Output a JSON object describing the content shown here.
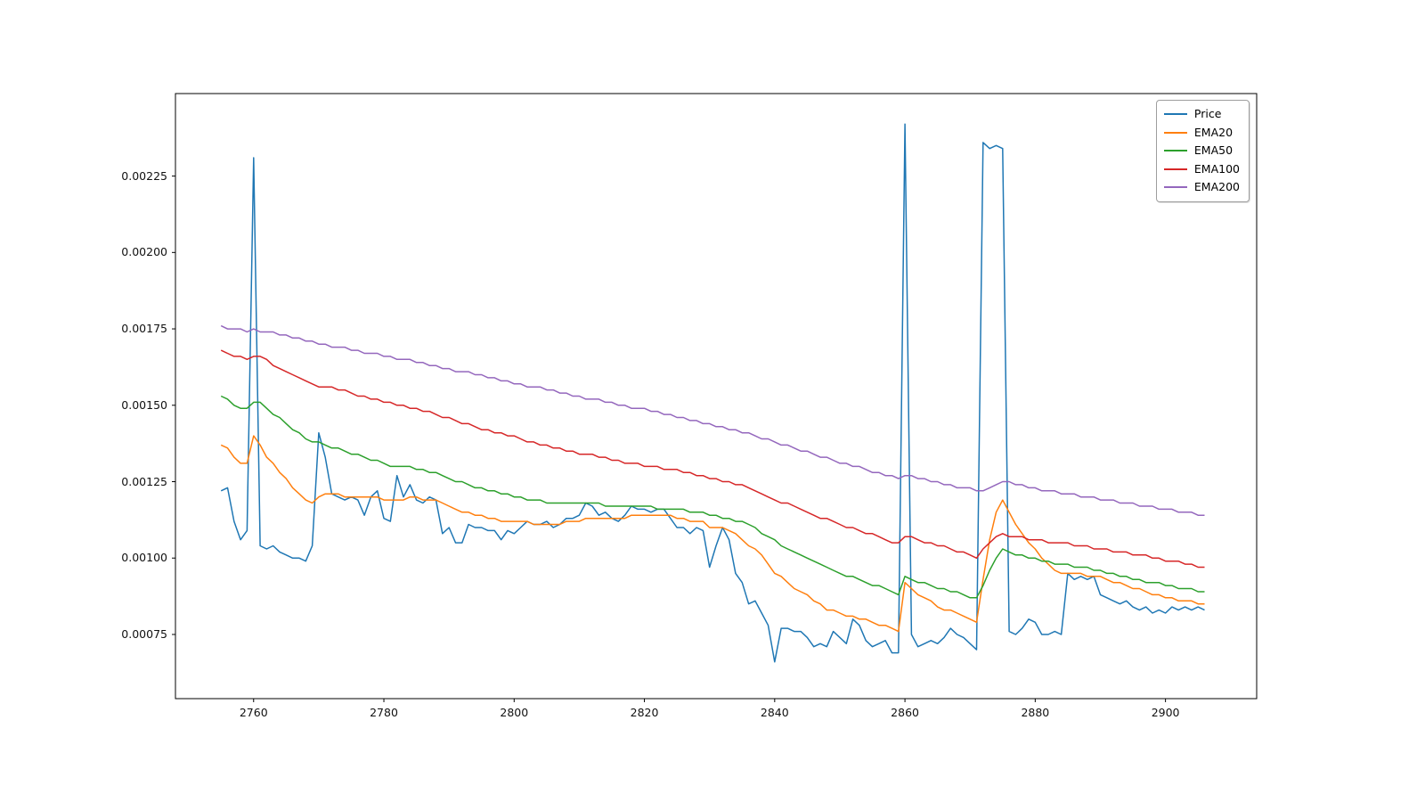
{
  "figure": {
    "background_color": "#ffffff",
    "frame_color": "#000000"
  },
  "chart_data": {
    "type": "line",
    "title": "",
    "xlabel": "",
    "ylabel": "",
    "grid": false,
    "legend_position": "upper right",
    "legend_entries": [
      "Price",
      "EMA20",
      "EMA50",
      "EMA100",
      "EMA200"
    ],
    "xlim": [
      2748,
      2914
    ],
    "ylim": [
      0.00054,
      0.00252
    ],
    "xticks": [
      2760,
      2780,
      2800,
      2820,
      2840,
      2860,
      2880,
      2900
    ],
    "yticks": [
      0.00075,
      0.001,
      0.00125,
      0.0015,
      0.00175,
      0.002,
      0.00225
    ],
    "ytick_labels": [
      "0.00075",
      "0.00100",
      "0.00125",
      "0.00150",
      "0.00175",
      "0.00200",
      "0.00225"
    ],
    "x": [
      2755,
      2756,
      2757,
      2758,
      2759,
      2760,
      2761,
      2762,
      2763,
      2764,
      2765,
      2766,
      2767,
      2768,
      2769,
      2770,
      2771,
      2772,
      2773,
      2774,
      2775,
      2776,
      2777,
      2778,
      2779,
      2780,
      2781,
      2782,
      2783,
      2784,
      2785,
      2786,
      2787,
      2788,
      2789,
      2790,
      2791,
      2792,
      2793,
      2794,
      2795,
      2796,
      2797,
      2798,
      2799,
      2800,
      2801,
      2802,
      2803,
      2804,
      2805,
      2806,
      2807,
      2808,
      2809,
      2810,
      2811,
      2812,
      2813,
      2814,
      2815,
      2816,
      2817,
      2818,
      2819,
      2820,
      2821,
      2822,
      2823,
      2824,
      2825,
      2826,
      2827,
      2828,
      2829,
      2830,
      2831,
      2832,
      2833,
      2834,
      2835,
      2836,
      2837,
      2838,
      2839,
      2840,
      2841,
      2842,
      2843,
      2844,
      2845,
      2846,
      2847,
      2848,
      2849,
      2850,
      2851,
      2852,
      2853,
      2854,
      2855,
      2856,
      2857,
      2858,
      2859,
      2860,
      2861,
      2862,
      2863,
      2864,
      2865,
      2866,
      2867,
      2868,
      2869,
      2870,
      2871,
      2872,
      2873,
      2874,
      2875,
      2876,
      2877,
      2878,
      2879,
      2880,
      2881,
      2882,
      2883,
      2884,
      2885,
      2886,
      2887,
      2888,
      2889,
      2890,
      2891,
      2892,
      2893,
      2894,
      2895,
      2896,
      2897,
      2898,
      2899,
      2900,
      2901,
      2902,
      2903,
      2904,
      2905,
      2906
    ],
    "series": [
      {
        "name": "Price",
        "color": "#1f77b4",
        "values": [
          0.00122,
          0.00123,
          0.00112,
          0.00106,
          0.00109,
          0.00231,
          0.00104,
          0.00103,
          0.00104,
          0.00102,
          0.00101,
          0.001,
          0.001,
          0.00099,
          0.00104,
          0.00141,
          0.00133,
          0.00121,
          0.0012,
          0.00119,
          0.0012,
          0.00119,
          0.00114,
          0.0012,
          0.00122,
          0.00113,
          0.00112,
          0.00127,
          0.0012,
          0.00124,
          0.00119,
          0.00118,
          0.0012,
          0.00119,
          0.00108,
          0.0011,
          0.00105,
          0.00105,
          0.00111,
          0.0011,
          0.0011,
          0.00109,
          0.00109,
          0.00106,
          0.00109,
          0.00108,
          0.0011,
          0.00112,
          0.00111,
          0.00111,
          0.00112,
          0.0011,
          0.00111,
          0.00113,
          0.00113,
          0.00114,
          0.00118,
          0.00117,
          0.00114,
          0.00115,
          0.00113,
          0.00112,
          0.00114,
          0.00117,
          0.00116,
          0.00116,
          0.00115,
          0.00116,
          0.00116,
          0.00113,
          0.0011,
          0.0011,
          0.00108,
          0.0011,
          0.00109,
          0.00097,
          0.00104,
          0.0011,
          0.00106,
          0.00095,
          0.00092,
          0.00085,
          0.00086,
          0.00082,
          0.00078,
          0.00066,
          0.00077,
          0.00077,
          0.00076,
          0.00076,
          0.00074,
          0.00071,
          0.00072,
          0.00071,
          0.00076,
          0.00074,
          0.00072,
          0.0008,
          0.00078,
          0.00073,
          0.00071,
          0.00072,
          0.00073,
          0.00069,
          0.00069,
          0.00242,
          0.00075,
          0.00071,
          0.00072,
          0.00073,
          0.00072,
          0.00074,
          0.00077,
          0.00075,
          0.00074,
          0.00072,
          0.0007,
          0.00236,
          0.00234,
          0.00235,
          0.00234,
          0.00076,
          0.00075,
          0.00077,
          0.0008,
          0.00079,
          0.00075,
          0.00075,
          0.00076,
          0.00075,
          0.00095,
          0.00093,
          0.00094,
          0.00093,
          0.00094,
          0.00088,
          0.00087,
          0.00086,
          0.00085,
          0.00086,
          0.00084,
          0.00083,
          0.00084,
          0.00082,
          0.00083,
          0.00082,
          0.00084,
          0.00083,
          0.00084,
          0.00083,
          0.00084,
          0.00083
        ]
      },
      {
        "name": "EMA20",
        "color": "#ff7f0e",
        "values": [
          0.00137,
          0.00136,
          0.00133,
          0.00131,
          0.00131,
          0.0014,
          0.00137,
          0.00133,
          0.00131,
          0.00128,
          0.00126,
          0.00123,
          0.00121,
          0.00119,
          0.00118,
          0.0012,
          0.00121,
          0.00121,
          0.00121,
          0.0012,
          0.0012,
          0.0012,
          0.0012,
          0.0012,
          0.0012,
          0.00119,
          0.00119,
          0.00119,
          0.00119,
          0.0012,
          0.0012,
          0.00119,
          0.00119,
          0.00119,
          0.00118,
          0.00117,
          0.00116,
          0.00115,
          0.00115,
          0.00114,
          0.00114,
          0.00113,
          0.00113,
          0.00112,
          0.00112,
          0.00112,
          0.00112,
          0.00112,
          0.00111,
          0.00111,
          0.00111,
          0.00111,
          0.00111,
          0.00112,
          0.00112,
          0.00112,
          0.00113,
          0.00113,
          0.00113,
          0.00113,
          0.00113,
          0.00113,
          0.00113,
          0.00114,
          0.00114,
          0.00114,
          0.00114,
          0.00114,
          0.00114,
          0.00114,
          0.00113,
          0.00113,
          0.00112,
          0.00112,
          0.00112,
          0.0011,
          0.0011,
          0.0011,
          0.00109,
          0.00108,
          0.00106,
          0.00104,
          0.00103,
          0.00101,
          0.00098,
          0.00095,
          0.00094,
          0.00092,
          0.0009,
          0.00089,
          0.00088,
          0.00086,
          0.00085,
          0.00083,
          0.00083,
          0.00082,
          0.00081,
          0.00081,
          0.0008,
          0.0008,
          0.00079,
          0.00078,
          0.00078,
          0.00077,
          0.00076,
          0.00092,
          0.0009,
          0.00088,
          0.00087,
          0.00086,
          0.00084,
          0.00083,
          0.00083,
          0.00082,
          0.00081,
          0.0008,
          0.00079,
          0.00093,
          0.00106,
          0.00115,
          0.00119,
          0.00115,
          0.00111,
          0.00108,
          0.00105,
          0.00103,
          0.001,
          0.00098,
          0.00096,
          0.00095,
          0.00095,
          0.00095,
          0.00095,
          0.00094,
          0.00094,
          0.00094,
          0.00093,
          0.00092,
          0.00092,
          0.00091,
          0.0009,
          0.0009,
          0.00089,
          0.00088,
          0.00088,
          0.00087,
          0.00087,
          0.00086,
          0.00086,
          0.00086,
          0.00085,
          0.00085
        ]
      },
      {
        "name": "EMA50",
        "color": "#2ca02c",
        "values": [
          0.00153,
          0.00152,
          0.0015,
          0.00149,
          0.00149,
          0.00151,
          0.00151,
          0.00149,
          0.00147,
          0.00146,
          0.00144,
          0.00142,
          0.00141,
          0.00139,
          0.00138,
          0.00138,
          0.00137,
          0.00136,
          0.00136,
          0.00135,
          0.00134,
          0.00134,
          0.00133,
          0.00132,
          0.00132,
          0.00131,
          0.0013,
          0.0013,
          0.0013,
          0.0013,
          0.00129,
          0.00129,
          0.00128,
          0.00128,
          0.00127,
          0.00126,
          0.00125,
          0.00125,
          0.00124,
          0.00123,
          0.00123,
          0.00122,
          0.00122,
          0.00121,
          0.00121,
          0.0012,
          0.0012,
          0.00119,
          0.00119,
          0.00119,
          0.00118,
          0.00118,
          0.00118,
          0.00118,
          0.00118,
          0.00118,
          0.00118,
          0.00118,
          0.00118,
          0.00117,
          0.00117,
          0.00117,
          0.00117,
          0.00117,
          0.00117,
          0.00117,
          0.00117,
          0.00116,
          0.00116,
          0.00116,
          0.00116,
          0.00116,
          0.00115,
          0.00115,
          0.00115,
          0.00114,
          0.00114,
          0.00113,
          0.00113,
          0.00112,
          0.00112,
          0.00111,
          0.0011,
          0.00108,
          0.00107,
          0.00106,
          0.00104,
          0.00103,
          0.00102,
          0.00101,
          0.001,
          0.00099,
          0.00098,
          0.00097,
          0.00096,
          0.00095,
          0.00094,
          0.00094,
          0.00093,
          0.00092,
          0.00091,
          0.00091,
          0.0009,
          0.00089,
          0.00088,
          0.00094,
          0.00093,
          0.00092,
          0.00092,
          0.00091,
          0.0009,
          0.0009,
          0.00089,
          0.00089,
          0.00088,
          0.00087,
          0.00087,
          0.00091,
          0.00096,
          0.001,
          0.00103,
          0.00102,
          0.00101,
          0.00101,
          0.001,
          0.001,
          0.00099,
          0.00099,
          0.00098,
          0.00098,
          0.00098,
          0.00097,
          0.00097,
          0.00097,
          0.00096,
          0.00096,
          0.00095,
          0.00095,
          0.00094,
          0.00094,
          0.00093,
          0.00093,
          0.00092,
          0.00092,
          0.00092,
          0.00091,
          0.00091,
          0.0009,
          0.0009,
          0.0009,
          0.00089,
          0.00089
        ]
      },
      {
        "name": "EMA100",
        "color": "#d62728",
        "values": [
          0.00168,
          0.00167,
          0.00166,
          0.00166,
          0.00165,
          0.00166,
          0.00166,
          0.00165,
          0.00163,
          0.00162,
          0.00161,
          0.0016,
          0.00159,
          0.00158,
          0.00157,
          0.00156,
          0.00156,
          0.00156,
          0.00155,
          0.00155,
          0.00154,
          0.00153,
          0.00153,
          0.00152,
          0.00152,
          0.00151,
          0.00151,
          0.0015,
          0.0015,
          0.00149,
          0.00149,
          0.00148,
          0.00148,
          0.00147,
          0.00146,
          0.00146,
          0.00145,
          0.00144,
          0.00144,
          0.00143,
          0.00142,
          0.00142,
          0.00141,
          0.00141,
          0.0014,
          0.0014,
          0.00139,
          0.00138,
          0.00138,
          0.00137,
          0.00137,
          0.00136,
          0.00136,
          0.00135,
          0.00135,
          0.00134,
          0.00134,
          0.00134,
          0.00133,
          0.00133,
          0.00132,
          0.00132,
          0.00131,
          0.00131,
          0.00131,
          0.0013,
          0.0013,
          0.0013,
          0.00129,
          0.00129,
          0.00129,
          0.00128,
          0.00128,
          0.00127,
          0.00127,
          0.00126,
          0.00126,
          0.00125,
          0.00125,
          0.00124,
          0.00124,
          0.00123,
          0.00122,
          0.00121,
          0.0012,
          0.00119,
          0.00118,
          0.00118,
          0.00117,
          0.00116,
          0.00115,
          0.00114,
          0.00113,
          0.00113,
          0.00112,
          0.00111,
          0.0011,
          0.0011,
          0.00109,
          0.00108,
          0.00108,
          0.00107,
          0.00106,
          0.00105,
          0.00105,
          0.00107,
          0.00107,
          0.00106,
          0.00105,
          0.00105,
          0.00104,
          0.00104,
          0.00103,
          0.00102,
          0.00102,
          0.00101,
          0.001,
          0.00103,
          0.00105,
          0.00107,
          0.00108,
          0.00107,
          0.00107,
          0.00107,
          0.00106,
          0.00106,
          0.00106,
          0.00105,
          0.00105,
          0.00105,
          0.00105,
          0.00104,
          0.00104,
          0.00104,
          0.00103,
          0.00103,
          0.00103,
          0.00102,
          0.00102,
          0.00102,
          0.00101,
          0.00101,
          0.00101,
          0.001,
          0.001,
          0.00099,
          0.00099,
          0.00099,
          0.00098,
          0.00098,
          0.00097,
          0.00097
        ]
      },
      {
        "name": "EMA200",
        "color": "#9467bd",
        "values": [
          0.00176,
          0.00175,
          0.00175,
          0.00175,
          0.00174,
          0.00175,
          0.00174,
          0.00174,
          0.00174,
          0.00173,
          0.00173,
          0.00172,
          0.00172,
          0.00171,
          0.00171,
          0.0017,
          0.0017,
          0.00169,
          0.00169,
          0.00169,
          0.00168,
          0.00168,
          0.00167,
          0.00167,
          0.00167,
          0.00166,
          0.00166,
          0.00165,
          0.00165,
          0.00165,
          0.00164,
          0.00164,
          0.00163,
          0.00163,
          0.00162,
          0.00162,
          0.00161,
          0.00161,
          0.00161,
          0.0016,
          0.0016,
          0.00159,
          0.00159,
          0.00158,
          0.00158,
          0.00157,
          0.00157,
          0.00156,
          0.00156,
          0.00156,
          0.00155,
          0.00155,
          0.00154,
          0.00154,
          0.00153,
          0.00153,
          0.00152,
          0.00152,
          0.00152,
          0.00151,
          0.00151,
          0.0015,
          0.0015,
          0.00149,
          0.00149,
          0.00149,
          0.00148,
          0.00148,
          0.00147,
          0.00147,
          0.00146,
          0.00146,
          0.00145,
          0.00145,
          0.00144,
          0.00144,
          0.00143,
          0.00143,
          0.00142,
          0.00142,
          0.00141,
          0.00141,
          0.0014,
          0.00139,
          0.00139,
          0.00138,
          0.00137,
          0.00137,
          0.00136,
          0.00135,
          0.00135,
          0.00134,
          0.00133,
          0.00133,
          0.00132,
          0.00131,
          0.00131,
          0.0013,
          0.0013,
          0.00129,
          0.00128,
          0.00128,
          0.00127,
          0.00127,
          0.00126,
          0.00127,
          0.00127,
          0.00126,
          0.00126,
          0.00125,
          0.00125,
          0.00124,
          0.00124,
          0.00123,
          0.00123,
          0.00123,
          0.00122,
          0.00122,
          0.00123,
          0.00124,
          0.00125,
          0.00125,
          0.00124,
          0.00124,
          0.00123,
          0.00123,
          0.00122,
          0.00122,
          0.00122,
          0.00121,
          0.00121,
          0.00121,
          0.0012,
          0.0012,
          0.0012,
          0.00119,
          0.00119,
          0.00119,
          0.00118,
          0.00118,
          0.00118,
          0.00117,
          0.00117,
          0.00117,
          0.00116,
          0.00116,
          0.00116,
          0.00115,
          0.00115,
          0.00115,
          0.00114,
          0.00114
        ]
      }
    ]
  }
}
